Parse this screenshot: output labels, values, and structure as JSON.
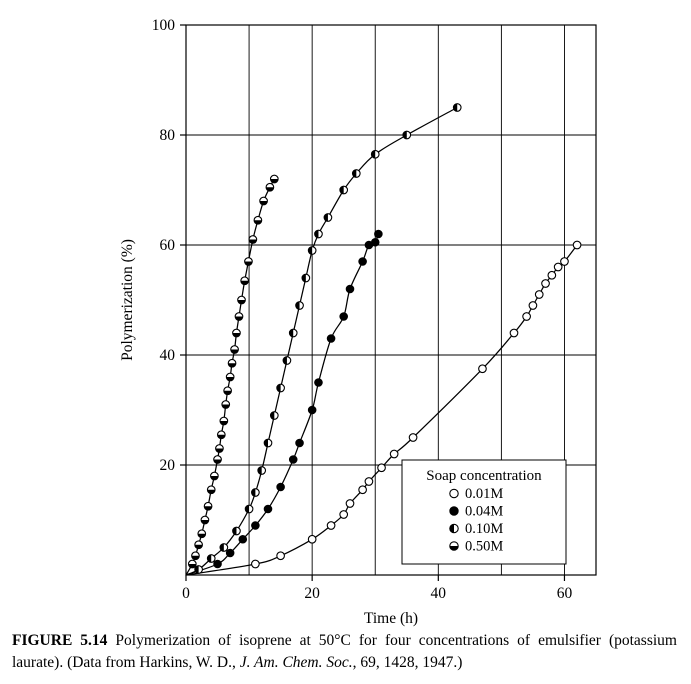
{
  "figure": {
    "caption_label": "FIGURE 5.14",
    "caption_text_1": "  Polymerization of isoprene at 50°C for four concentrations of emulsifier (potassium laurate). (Data from Harkins, W. D., ",
    "caption_italic": "J. Am. Chem. Soc.",
    "caption_text_2": ", 69, 1428, 1947.)"
  },
  "chart_data": {
    "type": "scatter",
    "title": "",
    "xlabel": "Time (h)",
    "ylabel": "Polymerization (%)",
    "xlim": [
      0,
      65
    ],
    "ylim": [
      0,
      100
    ],
    "x_ticks": [
      0,
      20,
      40,
      60
    ],
    "y_ticks": [
      20,
      40,
      60,
      80,
      100
    ],
    "x_gridlines": [
      10,
      20,
      30,
      40,
      50,
      60
    ],
    "y_gridlines": [
      20,
      40,
      60,
      80
    ],
    "grid": true,
    "line_color": "#000000",
    "background": "#ffffff",
    "legend": {
      "title": "Soap concentration",
      "position": "lower-right"
    },
    "series": [
      {
        "name": "0.01M",
        "marker": "open",
        "points": [
          [
            11,
            2
          ],
          [
            15,
            3.5
          ],
          [
            20,
            6.5
          ],
          [
            23,
            9
          ],
          [
            25,
            11
          ],
          [
            26,
            13
          ],
          [
            28,
            15.5
          ],
          [
            29,
            17
          ],
          [
            31,
            19.5
          ],
          [
            33,
            22
          ],
          [
            36,
            25
          ],
          [
            47,
            37.5
          ],
          [
            52,
            44
          ],
          [
            54,
            47
          ],
          [
            55,
            49
          ],
          [
            56,
            51
          ],
          [
            57,
            53
          ],
          [
            58,
            54.5
          ],
          [
            59,
            56
          ],
          [
            60,
            57
          ],
          [
            62,
            60
          ]
        ]
      },
      {
        "name": "0.04M",
        "marker": "filled",
        "points": [
          [
            5,
            2
          ],
          [
            7,
            4
          ],
          [
            9,
            6.5
          ],
          [
            11,
            9
          ],
          [
            13,
            12
          ],
          [
            15,
            16
          ],
          [
            17,
            21
          ],
          [
            18,
            24
          ],
          [
            20,
            30
          ],
          [
            21,
            35
          ],
          [
            23,
            43
          ],
          [
            25,
            47
          ],
          [
            26,
            52
          ],
          [
            28,
            57
          ],
          [
            29,
            60
          ],
          [
            30,
            60.5
          ],
          [
            30.5,
            62
          ]
        ]
      },
      {
        "name": "0.10M",
        "marker": "half-left",
        "points": [
          [
            2,
            1
          ],
          [
            4,
            3
          ],
          [
            6,
            5
          ],
          [
            8,
            8
          ],
          [
            10,
            12
          ],
          [
            11,
            15
          ],
          [
            12,
            19
          ],
          [
            13,
            24
          ],
          [
            14,
            29
          ],
          [
            15,
            34
          ],
          [
            16,
            39
          ],
          [
            17,
            44
          ],
          [
            18,
            49
          ],
          [
            19,
            54
          ],
          [
            20,
            59
          ],
          [
            21,
            62
          ],
          [
            22.5,
            65
          ],
          [
            25,
            70
          ],
          [
            27,
            73
          ],
          [
            30,
            76.5
          ],
          [
            35,
            80
          ],
          [
            43,
            85
          ]
        ]
      },
      {
        "name": "0.50M",
        "marker": "half-bottom",
        "points": [
          [
            1,
            2
          ],
          [
            1.5,
            3.5
          ],
          [
            2,
            5.5
          ],
          [
            2.5,
            7.5
          ],
          [
            3,
            10
          ],
          [
            3.5,
            12.5
          ],
          [
            4,
            15.5
          ],
          [
            4.5,
            18
          ],
          [
            5,
            21
          ],
          [
            5.3,
            23
          ],
          [
            5.6,
            25.5
          ],
          [
            6,
            28
          ],
          [
            6.3,
            31
          ],
          [
            6.6,
            33.5
          ],
          [
            7,
            36
          ],
          [
            7.3,
            38.5
          ],
          [
            7.7,
            41
          ],
          [
            8,
            44
          ],
          [
            8.4,
            47
          ],
          [
            8.8,
            50
          ],
          [
            9.3,
            53.5
          ],
          [
            9.9,
            57
          ],
          [
            10.6,
            61
          ],
          [
            11.4,
            64.5
          ],
          [
            12.3,
            68
          ],
          [
            13.3,
            70.5
          ],
          [
            14,
            72
          ]
        ]
      }
    ]
  }
}
